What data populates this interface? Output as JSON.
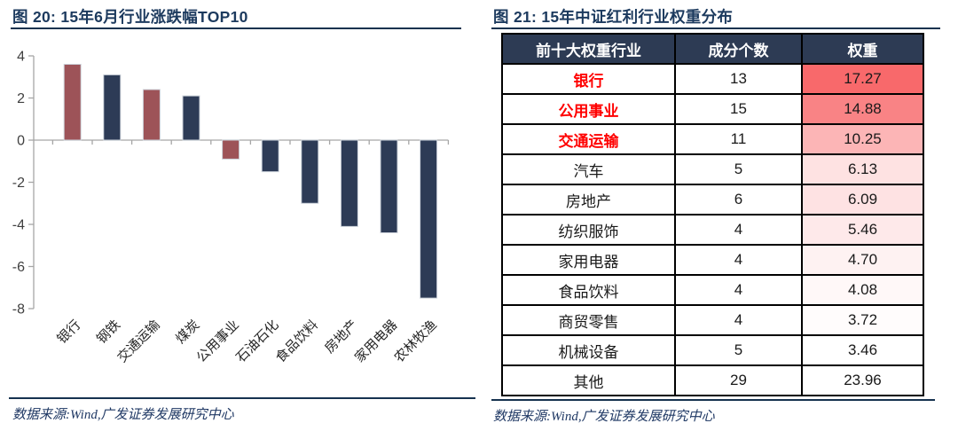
{
  "figure20": {
    "title": "图 20: 15年6月行业涨跌幅TOP10",
    "source": "数据来源:Wind,广发证券发展研究中心"
  },
  "figure21": {
    "title": "图 21: 15年中证红利行业权重分布",
    "source": "数据来源:Wind,广发证券发展研究中心",
    "table": {
      "headers": [
        "前十大权重行业",
        "成分个数",
        "权重"
      ],
      "header_bg": "#2D3B54",
      "header_text_color": "#FFFFFF",
      "highlight_text_color": "#FF0000",
      "border_color": "#000000",
      "rows": [
        {
          "industry": "银行",
          "count": "13",
          "weight": "17.27",
          "highlight": true,
          "weight_bg": "#F8696B"
        },
        {
          "industry": "公用事业",
          "count": "15",
          "weight": "14.88",
          "highlight": true,
          "weight_bg": "#F98385"
        },
        {
          "industry": "交通运输",
          "count": "11",
          "weight": "10.25",
          "highlight": true,
          "weight_bg": "#FCB5B6"
        },
        {
          "industry": "汽车",
          "count": "5",
          "weight": "6.13",
          "highlight": false,
          "weight_bg": "#FEE2E2"
        },
        {
          "industry": "房地产",
          "count": "6",
          "weight": "6.09",
          "highlight": false,
          "weight_bg": "#FEE2E3"
        },
        {
          "industry": "纺织服饰",
          "count": "4",
          "weight": "5.46",
          "highlight": false,
          "weight_bg": "#FEE9EA"
        },
        {
          "industry": "家用电器",
          "count": "4",
          "weight": "4.70",
          "highlight": false,
          "weight_bg": "#FEF2F2"
        },
        {
          "industry": "食品饮料",
          "count": "4",
          "weight": "4.08",
          "highlight": false,
          "weight_bg": "#FFF8F8"
        },
        {
          "industry": "商贸零售",
          "count": "4",
          "weight": "3.72",
          "highlight": false,
          "weight_bg": "#FFFCFC"
        },
        {
          "industry": "机械设备",
          "count": "5",
          "weight": "3.46",
          "highlight": false,
          "weight_bg": "#FFFFFF"
        },
        {
          "industry": "其他",
          "count": "29",
          "weight": "23.96",
          "highlight": false,
          "weight_bg": "#FFFFFF"
        }
      ]
    }
  },
  "chart_data": {
    "type": "bar",
    "title": "15年6月行业涨跌幅TOP10",
    "categories": [
      "银行",
      "钢铁",
      "交通运输",
      "煤炭",
      "公用事业",
      "石油石化",
      "食品饮料",
      "房地产",
      "家用电器",
      "农林牧渔"
    ],
    "values": [
      3.6,
      3.1,
      2.4,
      2.1,
      -0.9,
      -1.5,
      -3.0,
      -4.1,
      -4.4,
      -7.5
    ],
    "bar_colors": [
      "#9D5358",
      "#2D3B56",
      "#9D5358",
      "#2D3B56",
      "#9D5358",
      "#2D3B56",
      "#2D3B56",
      "#2D3B56",
      "#2D3B56",
      "#2D3B56"
    ],
    "highlight_color": "#9D5358",
    "default_color": "#2D3B56",
    "bar_edge_color": "#CCD2DA",
    "axis_color": "#A6A6A6",
    "tick_label_color": "#404040",
    "xlabel": "",
    "ylabel": "",
    "ylim": [
      -8,
      4
    ],
    "yticks": [
      4,
      2,
      0,
      -2,
      -4,
      -6,
      -8
    ],
    "grid": false,
    "legend": "none"
  }
}
